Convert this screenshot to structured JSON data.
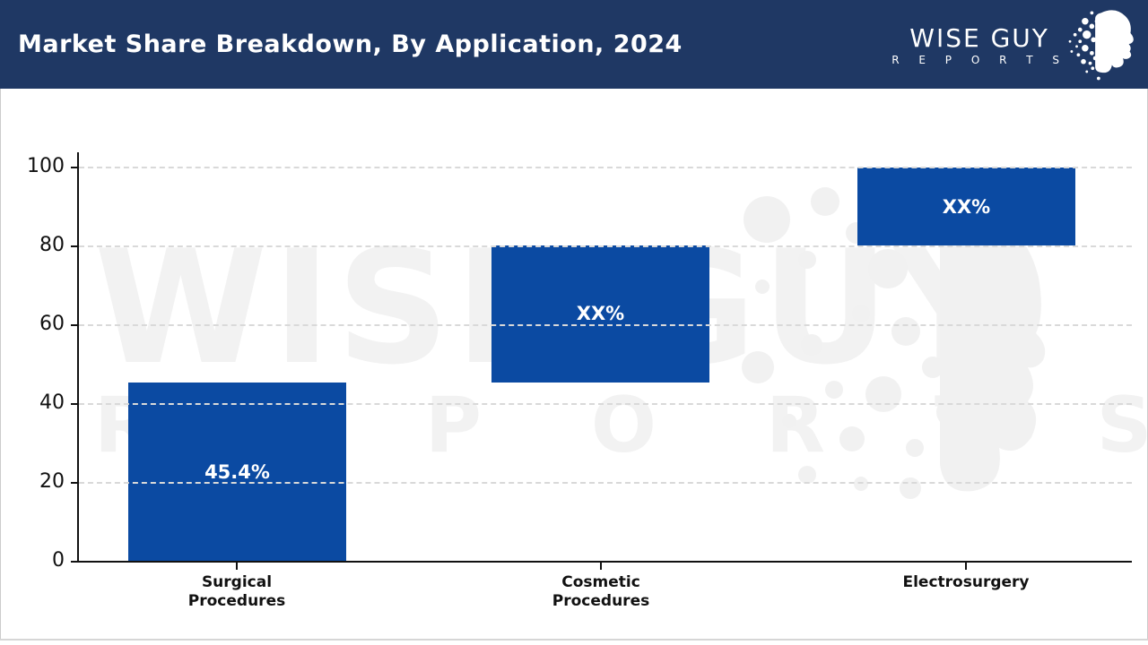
{
  "header": {
    "title": "Market Share Breakdown, By Application, 2024",
    "logo": {
      "line1": "WISE GUY",
      "line2": "R E P O R T S"
    },
    "bg_color": "#1f3864"
  },
  "watermark": {
    "line1": "WISE GUY",
    "line2": "R E P O R T S"
  },
  "chart_data": {
    "type": "bar",
    "subtype": "waterfall",
    "title": "Market Share Breakdown, By Application, 2024",
    "categories": [
      "Surgical Procedures",
      "Cosmetic Procedures",
      "Electrosurgery"
    ],
    "categories_display": [
      {
        "line1": "Surgical",
        "line2": "Procedures"
      },
      {
        "line1": "Cosmetic",
        "line2": "Procedures"
      },
      {
        "line1": "Electrosurgery",
        "line2": ""
      }
    ],
    "segments": [
      {
        "name": "Surgical Procedures",
        "start": 0,
        "end": 45.4,
        "label": "45.4%"
      },
      {
        "name": "Cosmetic Procedures",
        "start": 45.4,
        "end": 80,
        "label": "XX%"
      },
      {
        "name": "Electrosurgery",
        "start": 80,
        "end": 99.8,
        "label": "XX%"
      }
    ],
    "ylabel": "",
    "xlabel": "",
    "ylim": [
      0,
      100
    ],
    "yticks": [
      0,
      20,
      40,
      60,
      80,
      100
    ],
    "grid": "horizontal-dashed",
    "legend": "none",
    "bar_color": "#0b4aa2",
    "axis_color": "#111111",
    "grid_color": "#d9d9d9"
  }
}
